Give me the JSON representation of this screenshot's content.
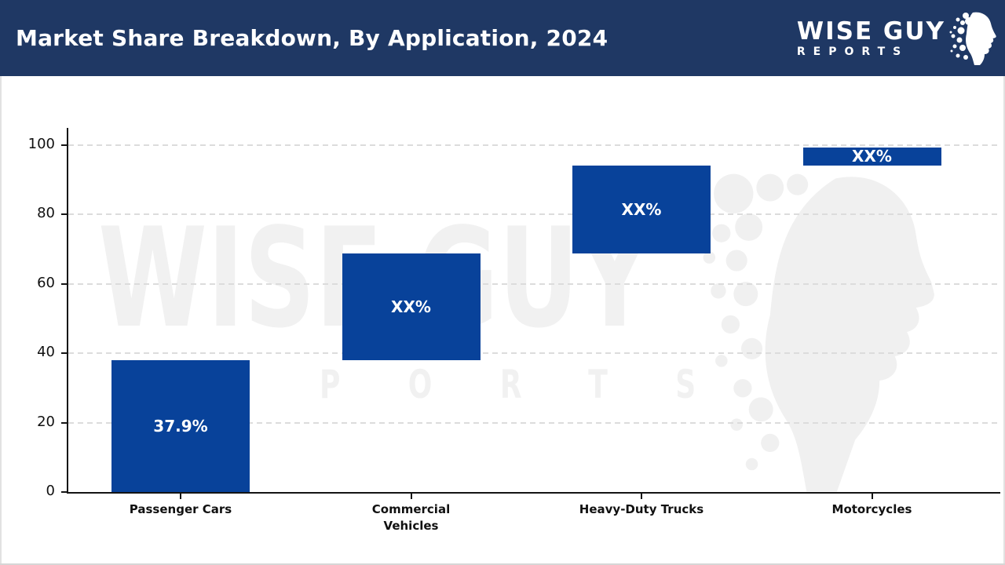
{
  "header": {
    "title": "Market Share Breakdown, By Application, 2024",
    "bg_color": "#1f3864",
    "logo_line1": "WISE GUY",
    "logo_line2": "REPORTS"
  },
  "watermark": {
    "line1": "WISE GUY",
    "line2": "REPORTS"
  },
  "chart_data": {
    "type": "bar",
    "variant": "waterfall",
    "title": "Market Share Breakdown, By Application, 2024",
    "categories": [
      "Passenger Cars",
      "Commercial\nVehicles",
      "Heavy-Duty Trucks",
      "Motorcycles"
    ],
    "segments": [
      {
        "category": "Passenger Cars",
        "start": 0,
        "end": 37.9,
        "label": "37.9%"
      },
      {
        "category": "Commercial Vehicles",
        "start": 37.9,
        "end": 68.7,
        "label": "XX%"
      },
      {
        "category": "Heavy-Duty Trucks",
        "start": 68.7,
        "end": 94.0,
        "label": "XX%"
      },
      {
        "category": "Motorcycles",
        "start": 94.0,
        "end": 99.3,
        "label": "XX%"
      }
    ],
    "bar_color": "#08429a",
    "bar_label_color": "#ffffff",
    "yticks": [
      0,
      20,
      40,
      60,
      80,
      100
    ],
    "ylim": [
      0,
      105
    ],
    "xlabel": "",
    "ylabel": "",
    "grid": {
      "horizontal": true,
      "style": "dashed",
      "color": "#dcdcdc"
    },
    "legend": "none"
  }
}
